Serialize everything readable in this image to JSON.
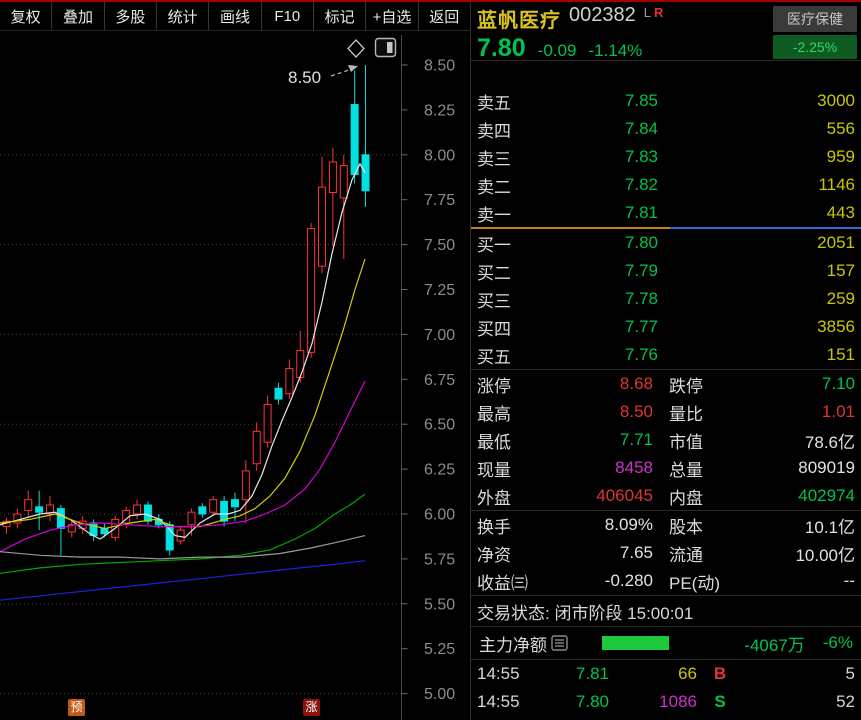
{
  "toolbar": {
    "items": [
      "复权",
      "叠加",
      "多股",
      "统计",
      "画线",
      "F10",
      "标记",
      "+自选",
      "返回"
    ]
  },
  "colors": {
    "up_red": "#e13434",
    "down_green": "#00c24e",
    "volume_yellow": "#c8c800",
    "magenta": "#cc33cc",
    "candle_up": "#ff3232",
    "candle_down": "#00e2e2",
    "industry_badge_bg": "#0f5a22",
    "top_line_red": "#a40000",
    "flow_bar_green": "#1fc93c",
    "ratio_buy_orange": "#c8860a",
    "ratio_sell_blue": "#2b6fd6"
  },
  "chart_data": {
    "type": "candlestick",
    "symbol": "蓝帆医疗 002382",
    "ylim": [
      5.0,
      8.5
    ],
    "y_ticks": [
      "8.50",
      "8.25",
      "8.00",
      "7.75",
      "7.50",
      "7.25",
      "7.00",
      "6.75",
      "6.50",
      "6.25",
      "6.00",
      "5.75",
      "5.50",
      "5.25",
      "5.00"
    ],
    "gridlines": [
      8.0,
      7.5,
      7.0,
      6.5,
      6.0,
      5.5,
      5.0
    ],
    "high_annotation": "8.50",
    "candles": [
      [
        5.93,
        5.98,
        5.89,
        5.96
      ],
      [
        5.95,
        6.03,
        5.92,
        6.0
      ],
      [
        6.02,
        6.13,
        5.98,
        6.08
      ],
      [
        6.04,
        6.13,
        5.91,
        6.01
      ],
      [
        6.0,
        6.1,
        5.96,
        6.05
      ],
      [
        6.03,
        6.05,
        5.77,
        5.92
      ],
      [
        5.9,
        5.97,
        5.87,
        5.94
      ],
      [
        5.92,
        5.99,
        5.89,
        5.96
      ],
      [
        5.95,
        5.97,
        5.85,
        5.88
      ],
      [
        5.92,
        5.95,
        5.87,
        5.89
      ],
      [
        5.87,
        5.99,
        5.85,
        5.97
      ],
      [
        5.95,
        6.04,
        5.92,
        6.02
      ],
      [
        6.0,
        6.08,
        5.97,
        6.05
      ],
      [
        6.05,
        6.07,
        5.94,
        5.96
      ],
      [
        5.97,
        6.0,
        5.92,
        5.94
      ],
      [
        5.94,
        5.96,
        5.77,
        5.8
      ],
      [
        5.85,
        5.93,
        5.83,
        5.91
      ],
      [
        5.94,
        6.03,
        5.88,
        6.01
      ],
      [
        6.04,
        6.06,
        5.98,
        6.0
      ],
      [
        6.01,
        6.1,
        5.99,
        6.08
      ],
      [
        6.07,
        6.1,
        5.93,
        5.96
      ],
      [
        6.08,
        6.12,
        5.96,
        6.04
      ],
      [
        6.08,
        6.3,
        5.95,
        6.24
      ],
      [
        6.28,
        6.51,
        6.24,
        6.46
      ],
      [
        6.4,
        6.66,
        6.37,
        6.61
      ],
      [
        6.7,
        6.73,
        6.61,
        6.64
      ],
      [
        6.67,
        6.86,
        6.64,
        6.81
      ],
      [
        6.76,
        7.02,
        6.73,
        6.91
      ],
      [
        6.9,
        7.62,
        6.87,
        7.59
      ],
      [
        7.38,
        7.99,
        7.34,
        7.82
      ],
      [
        7.79,
        8.04,
        7.49,
        7.96
      ],
      [
        7.76,
        8.0,
        7.42,
        7.94
      ],
      [
        8.28,
        8.47,
        7.84,
        7.89
      ],
      [
        8.0,
        8.5,
        7.71,
        7.8
      ]
    ],
    "ma_lines": [
      {
        "name": "MA5",
        "color": "#e8e8e8",
        "points": [
          [
            0,
            5.94
          ],
          [
            20,
            5.97
          ],
          [
            40,
            6.0
          ],
          [
            55,
            6.01
          ],
          [
            70,
            5.97
          ],
          [
            90,
            5.89
          ],
          [
            100,
            5.86
          ],
          [
            115,
            5.92
          ],
          [
            130,
            5.99
          ],
          [
            145,
            6.0
          ],
          [
            160,
            5.97
          ],
          [
            175,
            5.88
          ],
          [
            185,
            5.87
          ],
          [
            200,
            5.95
          ],
          [
            215,
            6.0
          ],
          [
            228,
            6.0
          ],
          [
            240,
            6.02
          ],
          [
            252,
            6.1
          ],
          [
            262,
            6.22
          ],
          [
            272,
            6.38
          ],
          [
            282,
            6.52
          ],
          [
            292,
            6.65
          ],
          [
            302,
            6.79
          ],
          [
            312,
            6.95
          ],
          [
            322,
            7.18
          ],
          [
            332,
            7.45
          ],
          [
            342,
            7.68
          ],
          [
            352,
            7.86
          ],
          [
            360,
            7.95
          ],
          [
            365,
            7.9
          ]
        ]
      },
      {
        "name": "MA10",
        "color": "#cfcf00",
        "points": [
          [
            0,
            5.95
          ],
          [
            30,
            5.97
          ],
          [
            55,
            6.0
          ],
          [
            80,
            5.95
          ],
          [
            105,
            5.92
          ],
          [
            130,
            5.95
          ],
          [
            155,
            5.97
          ],
          [
            175,
            5.93
          ],
          [
            200,
            5.93
          ],
          [
            225,
            5.97
          ],
          [
            240,
            5.99
          ],
          [
            255,
            6.03
          ],
          [
            270,
            6.1
          ],
          [
            285,
            6.2
          ],
          [
            300,
            6.35
          ],
          [
            315,
            6.55
          ],
          [
            330,
            6.8
          ],
          [
            343,
            7.02
          ],
          [
            355,
            7.25
          ],
          [
            365,
            7.42
          ]
        ]
      },
      {
        "name": "MA20",
        "color": "#d400d4",
        "points": [
          [
            0,
            5.79
          ],
          [
            25,
            5.86
          ],
          [
            50,
            5.91
          ],
          [
            75,
            5.94
          ],
          [
            100,
            5.95
          ],
          [
            130,
            5.94
          ],
          [
            160,
            5.93
          ],
          [
            190,
            5.93
          ],
          [
            220,
            5.94
          ],
          [
            245,
            5.96
          ],
          [
            265,
            6.0
          ],
          [
            285,
            6.05
          ],
          [
            305,
            6.14
          ],
          [
            320,
            6.25
          ],
          [
            335,
            6.4
          ],
          [
            348,
            6.55
          ],
          [
            357,
            6.65
          ],
          [
            365,
            6.74
          ]
        ]
      },
      {
        "name": "MA30",
        "color": "#00a800",
        "points": [
          [
            0,
            5.67
          ],
          [
            40,
            5.7
          ],
          [
            80,
            5.72
          ],
          [
            120,
            5.73
          ],
          [
            160,
            5.74
          ],
          [
            200,
            5.75
          ],
          [
            240,
            5.77
          ],
          [
            270,
            5.8
          ],
          [
            295,
            5.86
          ],
          [
            315,
            5.92
          ],
          [
            335,
            6.0
          ],
          [
            350,
            6.05
          ],
          [
            365,
            6.11
          ]
        ]
      },
      {
        "name": "MA60",
        "color": "#9a9a9a",
        "points": [
          [
            0,
            5.79
          ],
          [
            40,
            5.77
          ],
          [
            80,
            5.76
          ],
          [
            120,
            5.76
          ],
          [
            160,
            5.75
          ],
          [
            200,
            5.76
          ],
          [
            240,
            5.76
          ],
          [
            280,
            5.78
          ],
          [
            310,
            5.81
          ],
          [
            335,
            5.84
          ],
          [
            365,
            5.88
          ]
        ]
      },
      {
        "name": "MA120",
        "color": "#2020e0",
        "points": [
          [
            0,
            5.52
          ],
          [
            50,
            5.55
          ],
          [
            100,
            5.58
          ],
          [
            150,
            5.61
          ],
          [
            200,
            5.64
          ],
          [
            250,
            5.67
          ],
          [
            300,
            5.7
          ],
          [
            335,
            5.72
          ],
          [
            365,
            5.74
          ]
        ]
      }
    ],
    "event_markers": [
      {
        "label": "预",
        "bg": "#c05a14",
        "x": 68
      },
      {
        "label": "涨",
        "bg": "#8a1510",
        "x": 303
      }
    ]
  },
  "panel": {
    "header": {
      "name": "蓝帆医疗",
      "code": "002382",
      "flag_l": "L",
      "flag_r": "R",
      "industry": "医疗保健",
      "industry_change": "-2.25%",
      "price": "7.80",
      "change": "-0.09",
      "change_pct": "-1.14%"
    },
    "sell_orders": [
      {
        "label": "卖五",
        "price": "7.85",
        "qty": "3000"
      },
      {
        "label": "卖四",
        "price": "7.84",
        "qty": "556"
      },
      {
        "label": "卖三",
        "price": "7.83",
        "qty": "959"
      },
      {
        "label": "卖二",
        "price": "7.82",
        "qty": "1146"
      },
      {
        "label": "卖一",
        "price": "7.81",
        "qty": "443"
      }
    ],
    "buy_orders": [
      {
        "label": "买一",
        "price": "7.80",
        "qty": "2051"
      },
      {
        "label": "买二",
        "price": "7.79",
        "qty": "157"
      },
      {
        "label": "买三",
        "price": "7.78",
        "qty": "259"
      },
      {
        "label": "买四",
        "price": "7.77",
        "qty": "3856"
      },
      {
        "label": "买五",
        "price": "7.76",
        "qty": "151"
      }
    ],
    "stats_rows": [
      {
        "l1": "涨停",
        "v1": "8.68",
        "c1": "up",
        "l2": "跌停",
        "v2": "7.10",
        "c2": "down"
      },
      {
        "l1": "最高",
        "v1": "8.50",
        "c1": "up",
        "l2": "量比",
        "v2": "1.01",
        "c2": "up"
      },
      {
        "l1": "最低",
        "v1": "7.71",
        "c1": "down",
        "l2": "市值",
        "v2": "78.6亿",
        "c2": "neu"
      },
      {
        "l1": "现量",
        "v1": "8458",
        "c1": "mag",
        "l2": "总量",
        "v2": "809019",
        "c2": "neu"
      },
      {
        "l1": "外盘",
        "v1": "406045",
        "c1": "up",
        "l2": "内盘",
        "v2": "402974",
        "c2": "down"
      }
    ],
    "info_rows": [
      {
        "l1": "换手",
        "v1": "8.09%",
        "c1": "neu",
        "l2": "股本",
        "v2": "10.1亿",
        "c2": "neu"
      },
      {
        "l1": "净资",
        "v1": "7.65",
        "c1": "neu",
        "l2": "流通",
        "v2": "10.00亿",
        "c2": "neu"
      },
      {
        "l1": "收益㈢",
        "v1": "-0.280",
        "c1": "neu",
        "l2": "PE(动)",
        "v2": "--",
        "c2": "neu"
      }
    ],
    "status": "交易状态: 闭市阶段 15:00:01",
    "main_flow": {
      "label": "主力净额",
      "value": "-4067万",
      "pct": "-6%"
    },
    "ticks": [
      {
        "time": "14:55",
        "price": "7.81",
        "pc": "down",
        "qty": "66",
        "qc": "vol",
        "side": "B",
        "sc": "up",
        "count": "5"
      },
      {
        "time": "14:55",
        "price": "7.80",
        "pc": "down",
        "qty": "1086",
        "qc": "mag",
        "side": "S",
        "sc": "down",
        "count": "52"
      }
    ]
  }
}
